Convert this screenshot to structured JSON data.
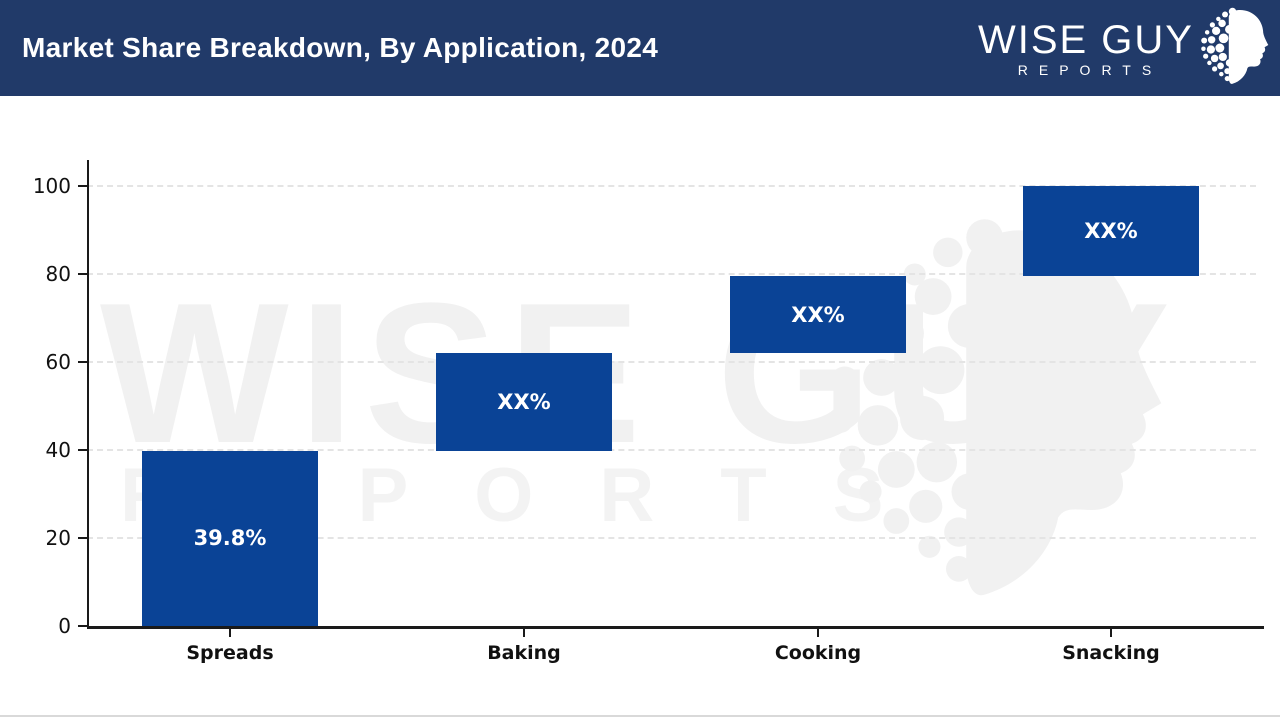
{
  "header": {
    "title": "Market Share Breakdown, By Application, 2024",
    "bg_color": "#213a69",
    "logo": {
      "line1": "WISE GUY",
      "line2": "REPORTS"
    }
  },
  "watermark": {
    "line1": "WISE GUY",
    "line2": "REPORTS"
  },
  "chart_data": {
    "type": "bar",
    "subtype": "waterfall",
    "title": "",
    "xlabel": "",
    "ylabel": "",
    "categories": [
      "Spreads",
      "Baking",
      "Cooking",
      "Snacking"
    ],
    "segments": [
      {
        "category": "Spreads",
        "start": 0,
        "end": 39.8,
        "label": "39.8%"
      },
      {
        "category": "Baking",
        "start": 39.8,
        "end": 62,
        "label": "XX%"
      },
      {
        "category": "Cooking",
        "start": 62,
        "end": 79.5,
        "label": "XX%"
      },
      {
        "category": "Snacking",
        "start": 79.5,
        "end": 100,
        "label": "XX%"
      }
    ],
    "y_ticks": [
      0,
      20,
      40,
      60,
      80,
      100
    ],
    "ylim": [
      0,
      105
    ],
    "grid": "horizontal dashed, behind bars",
    "legend": "none",
    "bar_color": "#0a4396",
    "bar_label_color": "#ffffff",
    "axis_color": "#1a1a1a",
    "gridline_color": "#e4e4e4",
    "watermark_color": "#f1f1f1"
  }
}
